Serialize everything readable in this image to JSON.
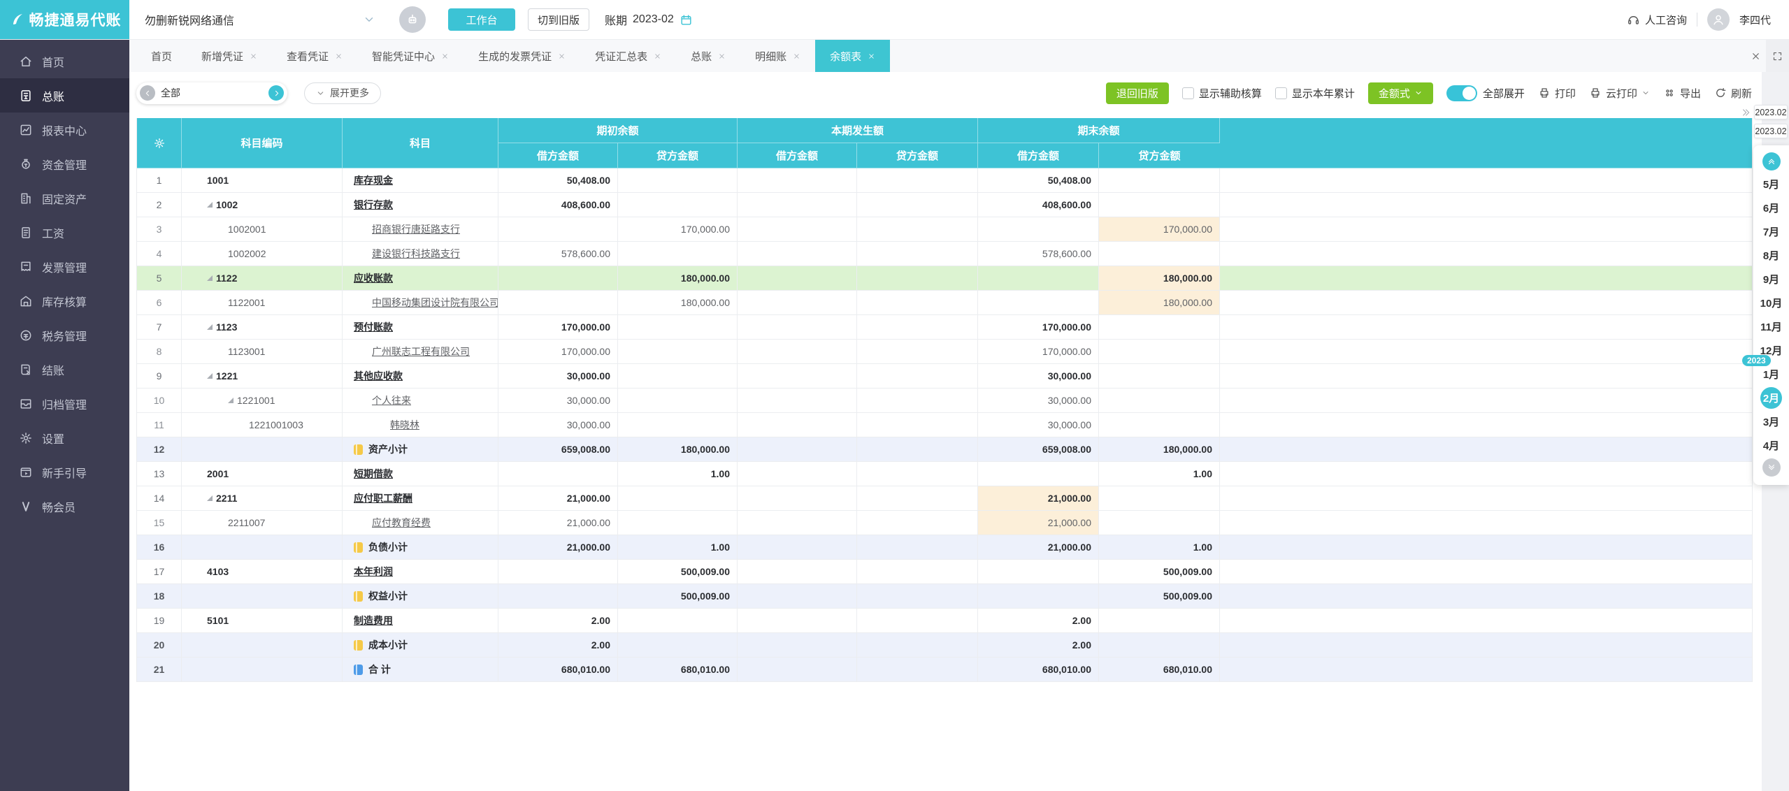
{
  "topbar": {
    "brand": "畅捷通易代账",
    "company": "勿删新锐网络通信",
    "workbench_btn": "工作台",
    "switch_old_btn": "切到旧版",
    "period_label": "账期",
    "period_value": "2023-02",
    "support_label": "人工咨询",
    "username": "李四代"
  },
  "tabs": [
    {
      "key": "home",
      "label": "首页",
      "closable": false,
      "active": false
    },
    {
      "key": "new-voucher",
      "label": "新增凭证",
      "closable": true,
      "active": false
    },
    {
      "key": "view-voucher",
      "label": "查看凭证",
      "closable": true,
      "active": false
    },
    {
      "key": "smart-voucher-center",
      "label": "智能凭证中心",
      "closable": true,
      "active": false
    },
    {
      "key": "generated-invoice-voucher",
      "label": "生成的发票凭证",
      "closable": true,
      "active": false
    },
    {
      "key": "voucher-summary",
      "label": "凭证汇总表",
      "closable": true,
      "active": false
    },
    {
      "key": "general-ledger",
      "label": "总账",
      "closable": true,
      "active": false
    },
    {
      "key": "detail-ledger",
      "label": "明细账",
      "closable": true,
      "active": false
    },
    {
      "key": "balance-sheet",
      "label": "余额表",
      "closable": true,
      "active": true
    }
  ],
  "sidebar": [
    {
      "key": "home",
      "label": "首页",
      "icon": "home-icon",
      "active": false
    },
    {
      "key": "general-ledger",
      "label": "总账",
      "icon": "ledger-icon",
      "active": true
    },
    {
      "key": "report-center",
      "label": "报表中心",
      "icon": "report-icon",
      "active": false
    },
    {
      "key": "funds",
      "label": "资金管理",
      "icon": "funds-icon",
      "active": false
    },
    {
      "key": "fixed-assets",
      "label": "固定资产",
      "icon": "assets-icon",
      "active": false
    },
    {
      "key": "payroll",
      "label": "工资",
      "icon": "payroll-icon",
      "active": false
    },
    {
      "key": "invoices",
      "label": "发票管理",
      "icon": "invoice-icon",
      "active": false
    },
    {
      "key": "inventory",
      "label": "库存核算",
      "icon": "inventory-icon",
      "active": false
    },
    {
      "key": "tax",
      "label": "税务管理",
      "icon": "tax-icon",
      "active": false
    },
    {
      "key": "closing",
      "label": "结账",
      "icon": "closing-icon",
      "active": false
    },
    {
      "key": "archive",
      "label": "归档管理",
      "icon": "archive-icon",
      "active": false
    },
    {
      "key": "settings",
      "label": "设置",
      "icon": "settings-icon",
      "active": false
    },
    {
      "key": "guide",
      "label": "新手引导",
      "icon": "guide-icon",
      "active": false
    },
    {
      "key": "membership",
      "label": "畅会员",
      "icon": "member-icon",
      "active": false
    }
  ],
  "toolbar": {
    "filter_value": "全部",
    "expand_more": "展开更多",
    "back_to_old": "退回旧版",
    "show_auxiliary": "显示辅助核算",
    "show_ytd": "显示本年累计",
    "amount_style": "金额式",
    "expand_all": "全部展开",
    "print": "打印",
    "cloud_print": "云打印",
    "export": "导出",
    "refresh": "刷新"
  },
  "table": {
    "headers": {
      "code": "科目编码",
      "subject": "科目",
      "opening": "期初余额",
      "current": "本期发生额",
      "ending": "期末余额",
      "debit": "借方金额",
      "credit": "贷方金额"
    },
    "rows": [
      {
        "n": 1,
        "code": "1001",
        "name": "库存现金",
        "lvl": 0,
        "arrow": false,
        "bold": true,
        "kind": "normal",
        "ob_dr": "50,408.00",
        "ob_cr": "",
        "cp_dr": "",
        "cp_cr": "",
        "eb_dr": "50,408.00",
        "eb_cr": "",
        "hl": []
      },
      {
        "n": 2,
        "code": "1002",
        "name": "银行存款",
        "lvl": 0,
        "arrow": true,
        "bold": true,
        "kind": "normal",
        "ob_dr": "408,600.00",
        "ob_cr": "",
        "cp_dr": "",
        "cp_cr": "",
        "eb_dr": "408,600.00",
        "eb_cr": "",
        "hl": []
      },
      {
        "n": 3,
        "code": "1002001",
        "name": "招商银行唐延路支行",
        "lvl": 1,
        "arrow": false,
        "bold": false,
        "kind": "normal",
        "ob_dr": "",
        "ob_cr": "170,000.00",
        "cp_dr": "",
        "cp_cr": "",
        "eb_dr": "",
        "eb_cr": "170,000.00",
        "hl": [
          "eb_cr"
        ]
      },
      {
        "n": 4,
        "code": "1002002",
        "name": "建设银行科技路支行",
        "lvl": 1,
        "arrow": false,
        "bold": false,
        "kind": "normal",
        "ob_dr": "578,600.00",
        "ob_cr": "",
        "cp_dr": "",
        "cp_cr": "",
        "eb_dr": "578,600.00",
        "eb_cr": "",
        "hl": []
      },
      {
        "n": 5,
        "code": "1122",
        "name": "应收账款",
        "lvl": 0,
        "arrow": true,
        "bold": true,
        "kind": "selected",
        "ob_dr": "",
        "ob_cr": "180,000.00",
        "cp_dr": "",
        "cp_cr": "",
        "eb_dr": "",
        "eb_cr": "180,000.00",
        "hl": [
          "eb_cr"
        ]
      },
      {
        "n": 6,
        "code": "1122001",
        "name": "中国移动集团设计院有限公司陕",
        "lvl": 1,
        "arrow": false,
        "bold": false,
        "kind": "normal",
        "ob_dr": "",
        "ob_cr": "180,000.00",
        "cp_dr": "",
        "cp_cr": "",
        "eb_dr": "",
        "eb_cr": "180,000.00",
        "hl": [
          "eb_cr"
        ]
      },
      {
        "n": 7,
        "code": "1123",
        "name": "预付账款",
        "lvl": 0,
        "arrow": true,
        "bold": true,
        "kind": "normal",
        "ob_dr": "170,000.00",
        "ob_cr": "",
        "cp_dr": "",
        "cp_cr": "",
        "eb_dr": "170,000.00",
        "eb_cr": "",
        "hl": []
      },
      {
        "n": 8,
        "code": "1123001",
        "name": "广州联志工程有限公司",
        "lvl": 1,
        "arrow": false,
        "bold": false,
        "kind": "normal",
        "ob_dr": "170,000.00",
        "ob_cr": "",
        "cp_dr": "",
        "cp_cr": "",
        "eb_dr": "170,000.00",
        "eb_cr": "",
        "hl": []
      },
      {
        "n": 9,
        "code": "1221",
        "name": "其他应收款",
        "lvl": 0,
        "arrow": true,
        "bold": true,
        "kind": "normal",
        "ob_dr": "30,000.00",
        "ob_cr": "",
        "cp_dr": "",
        "cp_cr": "",
        "eb_dr": "30,000.00",
        "eb_cr": "",
        "hl": []
      },
      {
        "n": 10,
        "code": "1221001",
        "name": "个人往来",
        "lvl": 1,
        "arrow": true,
        "bold": false,
        "kind": "normal",
        "ob_dr": "30,000.00",
        "ob_cr": "",
        "cp_dr": "",
        "cp_cr": "",
        "eb_dr": "30,000.00",
        "eb_cr": "",
        "hl": []
      },
      {
        "n": 11,
        "code": "1221001003",
        "name": "韩晓林",
        "lvl": 2,
        "arrow": false,
        "bold": false,
        "kind": "normal",
        "ob_dr": "30,000.00",
        "ob_cr": "",
        "cp_dr": "",
        "cp_cr": "",
        "eb_dr": "30,000.00",
        "eb_cr": "",
        "hl": []
      },
      {
        "n": 12,
        "code": "",
        "name": "资产小计",
        "lvl": 0,
        "arrow": false,
        "bold": true,
        "kind": "subtotal",
        "tag": "yellow",
        "ob_dr": "659,008.00",
        "ob_cr": "180,000.00",
        "cp_dr": "",
        "cp_cr": "",
        "eb_dr": "659,008.00",
        "eb_cr": "180,000.00",
        "hl": []
      },
      {
        "n": 13,
        "code": "2001",
        "name": "短期借款",
        "lvl": 0,
        "arrow": false,
        "bold": true,
        "kind": "normal",
        "ob_dr": "",
        "ob_cr": "1.00",
        "cp_dr": "",
        "cp_cr": "",
        "eb_dr": "",
        "eb_cr": "1.00",
        "hl": []
      },
      {
        "n": 14,
        "code": "2211",
        "name": "应付职工薪酬",
        "lvl": 0,
        "arrow": true,
        "bold": true,
        "kind": "normal",
        "ob_dr": "21,000.00",
        "ob_cr": "",
        "cp_dr": "",
        "cp_cr": "",
        "eb_dr": "21,000.00",
        "eb_cr": "",
        "hl": [
          "eb_dr"
        ]
      },
      {
        "n": 15,
        "code": "2211007",
        "name": "应付教育经费",
        "lvl": 1,
        "arrow": false,
        "bold": false,
        "kind": "normal",
        "ob_dr": "21,000.00",
        "ob_cr": "",
        "cp_dr": "",
        "cp_cr": "",
        "eb_dr": "21,000.00",
        "eb_cr": "",
        "hl": [
          "eb_dr"
        ]
      },
      {
        "n": 16,
        "code": "",
        "name": "负债小计",
        "lvl": 0,
        "arrow": false,
        "bold": true,
        "kind": "subtotal",
        "tag": "yellow",
        "ob_dr": "21,000.00",
        "ob_cr": "1.00",
        "cp_dr": "",
        "cp_cr": "",
        "eb_dr": "21,000.00",
        "eb_cr": "1.00",
        "hl": []
      },
      {
        "n": 17,
        "code": "4103",
        "name": "本年利润",
        "lvl": 0,
        "arrow": false,
        "bold": true,
        "kind": "normal",
        "ob_dr": "",
        "ob_cr": "500,009.00",
        "cp_dr": "",
        "cp_cr": "",
        "eb_dr": "",
        "eb_cr": "500,009.00",
        "hl": []
      },
      {
        "n": 18,
        "code": "",
        "name": "权益小计",
        "lvl": 0,
        "arrow": false,
        "bold": true,
        "kind": "subtotal",
        "tag": "yellow",
        "ob_dr": "",
        "ob_cr": "500,009.00",
        "cp_dr": "",
        "cp_cr": "",
        "eb_dr": "",
        "eb_cr": "500,009.00",
        "hl": []
      },
      {
        "n": 19,
        "code": "5101",
        "name": "制造费用",
        "lvl": 0,
        "arrow": false,
        "bold": true,
        "kind": "normal",
        "ob_dr": "2.00",
        "ob_cr": "",
        "cp_dr": "",
        "cp_cr": "",
        "eb_dr": "2.00",
        "eb_cr": "",
        "hl": []
      },
      {
        "n": 20,
        "code": "",
        "name": "成本小计",
        "lvl": 0,
        "arrow": false,
        "bold": true,
        "kind": "subtotal",
        "tag": "yellow",
        "ob_dr": "2.00",
        "ob_cr": "",
        "cp_dr": "",
        "cp_cr": "",
        "eb_dr": "2.00",
        "eb_cr": "",
        "hl": []
      },
      {
        "n": 21,
        "code": "",
        "name": "合 计",
        "lvl": 0,
        "arrow": false,
        "bold": true,
        "kind": "total",
        "tag": "blue",
        "ob_dr": "680,010.00",
        "ob_cr": "680,010.00",
        "cp_dr": "",
        "cp_cr": "",
        "eb_dr": "680,010.00",
        "eb_cr": "680,010.00",
        "hl": []
      }
    ]
  },
  "right_panel": {
    "period_boxes": [
      "2023.02",
      "2023.02"
    ],
    "year_badge": "2023",
    "months": [
      "5月",
      "6月",
      "7月",
      "8月",
      "9月",
      "10月",
      "11月",
      "12月",
      "1月",
      "2月",
      "3月",
      "4月"
    ],
    "selected_month": "2月"
  },
  "colors": {
    "brand_cyan": "#3CC3D5",
    "action_green": "#7DC324",
    "sidebar_dark": "#3D3D52",
    "selected_row_green": "#DCF3D1",
    "subtotal_row_blue": "#EDF1FB",
    "highlight_cell_orange": "#FCEFD9"
  }
}
